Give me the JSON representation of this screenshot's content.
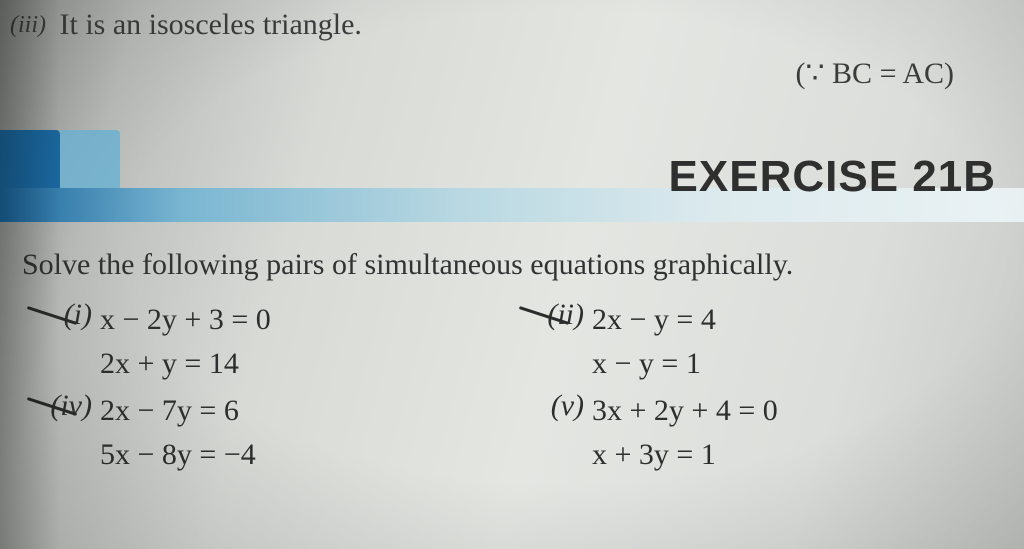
{
  "preamble": {
    "item_label": "(iii)",
    "item_text": "It is an isosceles triangle.",
    "reason": "(∵ BC = AC)"
  },
  "exercise": {
    "title": "EXERCISE 21B",
    "tab_colors": [
      "#1b6aa3",
      "#7ab6d1"
    ]
  },
  "instruction": "Solve the following pairs of simultaneous equations graphically.",
  "problems": {
    "left": [
      {
        "label": "(i)",
        "struck": true,
        "eq1": "x − 2y + 3 = 0",
        "eq2": "2x + y = 14"
      },
      {
        "label": "(iv)",
        "struck": true,
        "eq1": "2x − 7y = 6",
        "eq2": "5x − 8y = −4"
      }
    ],
    "right": [
      {
        "label": "(ii)",
        "struck": true,
        "eq1": "2x − y = 4",
        "eq2": "x − y = 1"
      },
      {
        "label": "(v)",
        "struck": false,
        "eq1": "3x + 2y + 4 = 0",
        "eq2": "x + 3y = 1"
      }
    ]
  },
  "colors": {
    "text": "#2e2e2e",
    "heading": "#2f2f2f"
  }
}
